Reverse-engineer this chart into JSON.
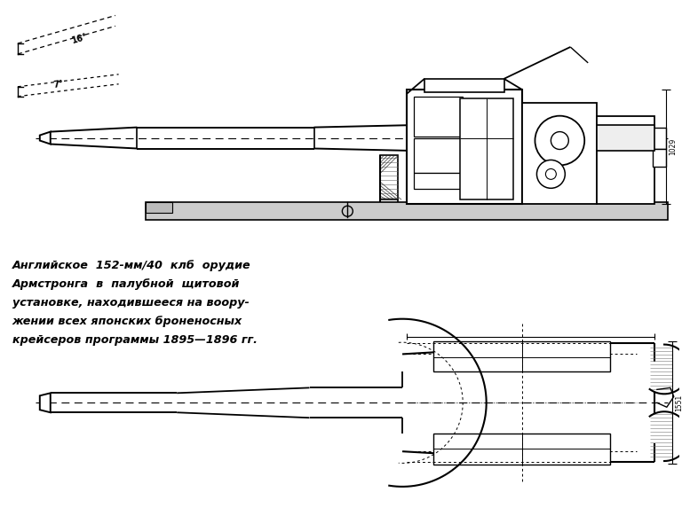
{
  "bg_color": "#ffffff",
  "fig_width": 7.68,
  "fig_height": 5.73,
  "caption_lines": [
    "Английское  152-мм/40  клб  орудие",
    "Армстронга  в  палубной  щитовой",
    "установке, находившееся на воору-",
    "жении всех японских броненосных",
    "крейсеров программы 1895—1896 гг."
  ],
  "angle_top": "16°",
  "angle_mid": "7°",
  "dim_right_top": "1029",
  "dim_right_bot": "1551"
}
